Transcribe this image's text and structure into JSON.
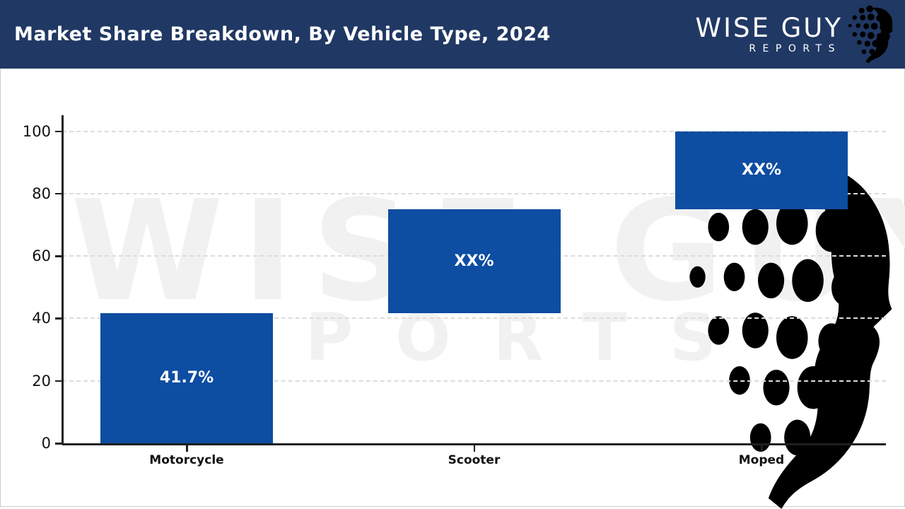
{
  "header": {
    "title": "Market Share Breakdown, By Vehicle Type, 2024",
    "logo": {
      "line1": "WISE GUY",
      "line2": "REPORTS"
    }
  },
  "watermark": {
    "line1": "WISE GUY",
    "line2": "REPORTS"
  },
  "colors": {
    "header_bg": "#203864",
    "bar": "#0d4da2",
    "gridline": "#dcdcdc",
    "axis": "#1f1f1f",
    "watermark": "#f1f1f1"
  },
  "chart_data": {
    "type": "bar",
    "subtype": "waterfall-stacked-percentage",
    "title": "Market Share Breakdown, By Vehicle Type, 2024",
    "xlabel": "",
    "ylabel": "",
    "categories": [
      "Motorcycle",
      "Scooter",
      "Moped"
    ],
    "segments": [
      {
        "category": "Motorcycle",
        "start": 0,
        "end": 41.7,
        "label": "41.7%"
      },
      {
        "category": "Scooter",
        "start": 41.7,
        "end": 75,
        "label": "XX%"
      },
      {
        "category": "Moped",
        "start": 75,
        "end": 100,
        "label": "XX%"
      }
    ],
    "yticks": [
      0,
      20,
      40,
      60,
      80,
      100
    ],
    "ylim": [
      0,
      105
    ],
    "grid": "horizontal-dashed",
    "legend": "none"
  }
}
